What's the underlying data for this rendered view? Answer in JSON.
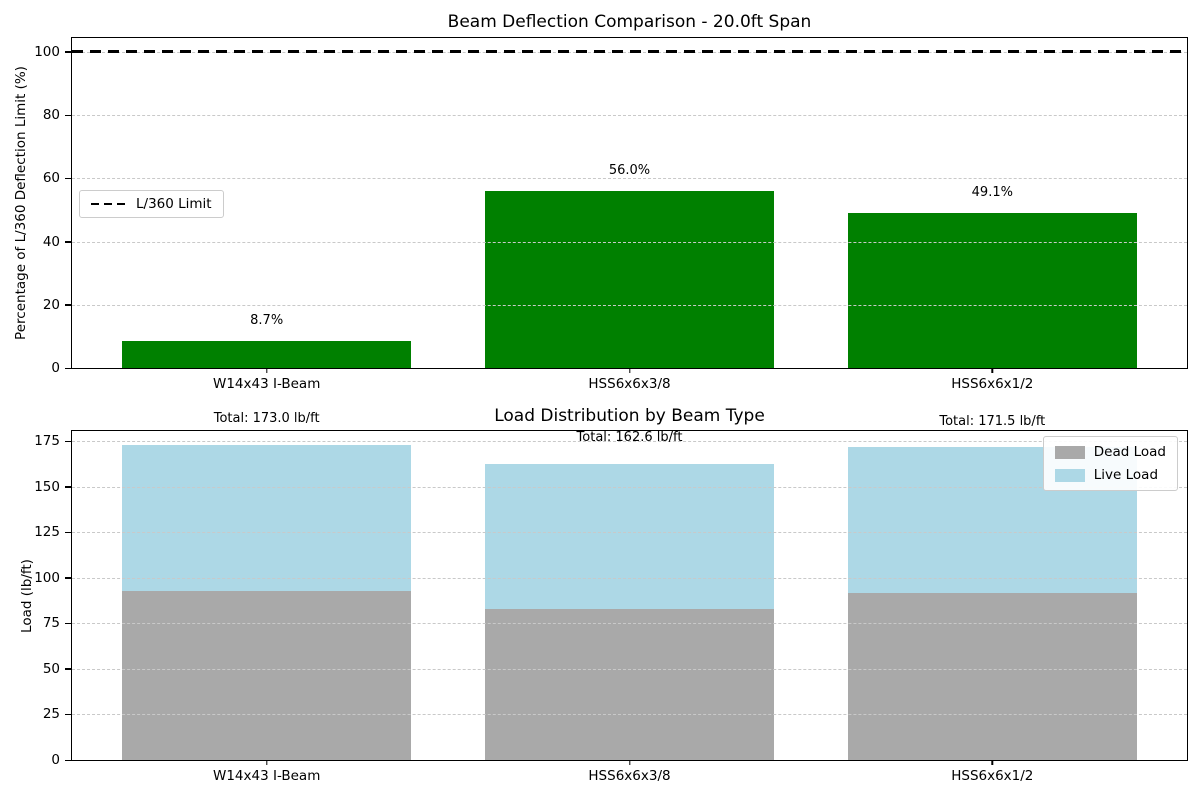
{
  "figure": {
    "background": "#ffffff"
  },
  "chart_data": [
    {
      "type": "bar",
      "title": "Beam Deflection Comparison - 20.0ft Span",
      "ylabel": "Percentage of L/360 Deflection Limit (%)",
      "xlabel": "",
      "categories": [
        "W14x43 I-Beam",
        "HSS6x6x3/8",
        "HSS6x6x1/2"
      ],
      "values": [
        8.7,
        56.0,
        49.1
      ],
      "bar_labels": [
        "8.7%",
        "56.0%",
        "49.1%"
      ],
      "bar_color": "#008000",
      "yticks": [
        0,
        20,
        40,
        60,
        80,
        100
      ],
      "ylim": [
        0,
        105
      ],
      "grid": true,
      "grid_style": "dashed",
      "reference_line": {
        "value": 100,
        "label": "L/360 Limit",
        "color": "#000000",
        "style": "dashed"
      },
      "legend_position": "center left"
    },
    {
      "type": "bar",
      "stacked": true,
      "title": "Load Distribution by Beam Type",
      "ylabel": "Load (lb/ft)",
      "xlabel": "",
      "categories": [
        "W14x43 I-Beam",
        "HSS6x6x3/8",
        "HSS6x6x1/2"
      ],
      "series": [
        {
          "name": "Dead Load",
          "color": "#a9a9a9",
          "values": [
            93.0,
            82.6,
            91.5
          ]
        },
        {
          "name": "Live Load",
          "color": "#add8e6",
          "values": [
            80.0,
            80.0,
            80.0
          ]
        }
      ],
      "totals": [
        173.0,
        162.6,
        171.5
      ],
      "total_labels": [
        "Total: 173.0 lb/ft",
        "Total: 162.6 lb/ft",
        "Total: 171.5 lb/ft"
      ],
      "yticks": [
        0,
        25,
        50,
        75,
        100,
        125,
        150,
        175
      ],
      "ylim": [
        0,
        181.6
      ],
      "grid": true,
      "grid_style": "dashed",
      "legend_position": "upper right"
    }
  ]
}
